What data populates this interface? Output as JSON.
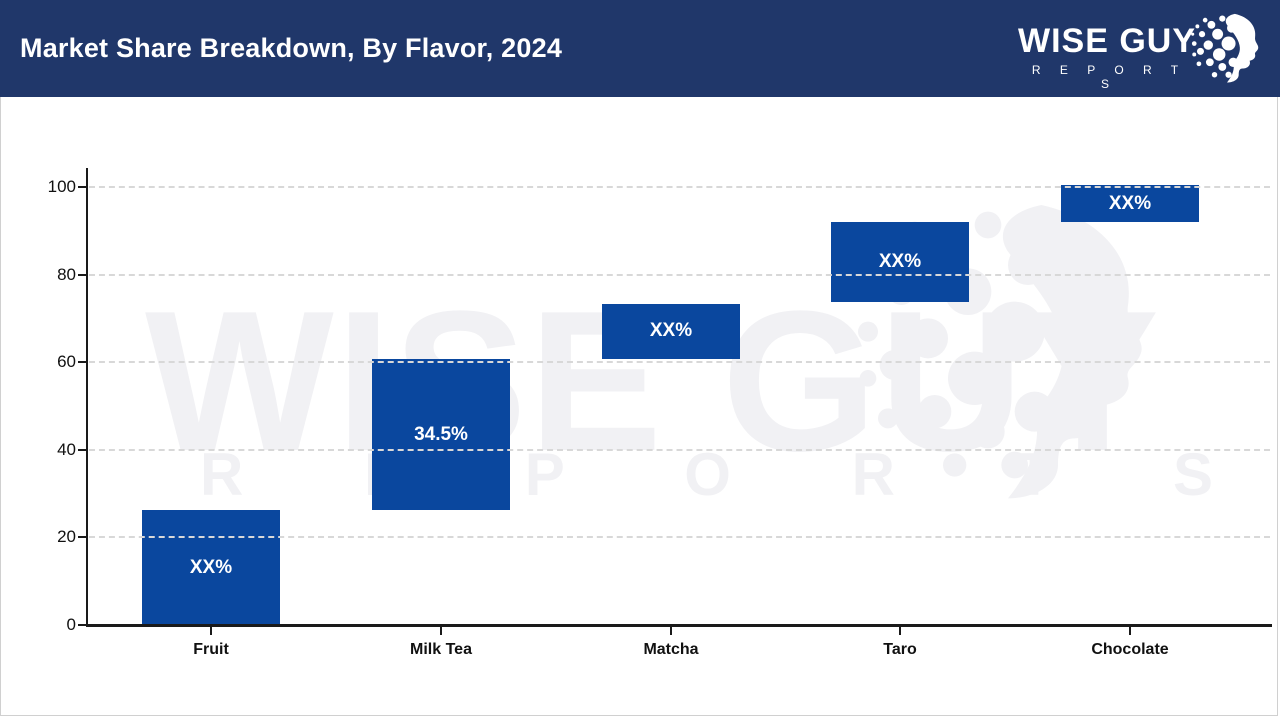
{
  "header": {
    "title": "Market Share Breakdown, By Flavor, 2024",
    "logo": {
      "line1": "WISE GUY",
      "line2": "R E P O R T S"
    }
  },
  "watermark": {
    "line1": "WISE GUY",
    "line2": "R E P O R T S"
  },
  "colors": {
    "header_bg": "#20376a",
    "bar": "#0a479e",
    "gridline": "#d8d8d8",
    "axis": "#1a1a1a",
    "bar_label_text": "#ffffff",
    "watermark": "#f1f1f4"
  },
  "chart_data": {
    "type": "bar",
    "subtype": "waterfall",
    "title": "Market Share Breakdown, By Flavor, 2024",
    "categories": [
      "Fruit",
      "Milk Tea",
      "Matcha",
      "Taro",
      "Chocolate"
    ],
    "segments": [
      {
        "category": "Fruit",
        "start": 0,
        "end": 26.2,
        "label": "XX%"
      },
      {
        "category": "Milk Tea",
        "start": 26.2,
        "end": 60.7,
        "label": "34.5%"
      },
      {
        "category": "Matcha",
        "start": 60.7,
        "end": 73.4,
        "label": "XX%"
      },
      {
        "category": "Taro",
        "start": 73.7,
        "end": 92.0,
        "label": "XX%"
      },
      {
        "category": "Chocolate",
        "start": 92.0,
        "end": 100.4,
        "label": "XX%"
      }
    ],
    "y_ticks": [
      0,
      20,
      40,
      60,
      80,
      100
    ],
    "ylim": [
      0,
      104
    ],
    "xlabel": "",
    "ylabel": "",
    "grid": "horizontal-dashed",
    "legend": "none",
    "bar_color": "#0a479e"
  }
}
